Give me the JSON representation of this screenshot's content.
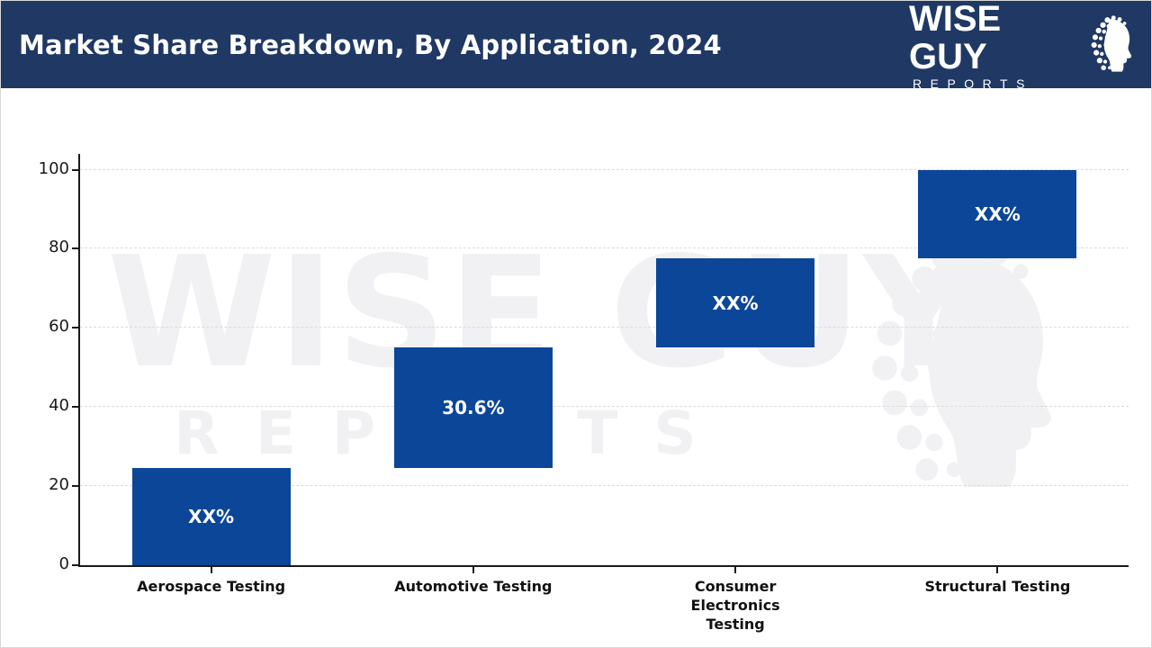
{
  "header": {
    "title": "Market Share Breakdown, By Application, 2024",
    "background_color": "#1f3864",
    "logo": {
      "wordmark": "WISE GUY",
      "subtext": "REPORTS"
    }
  },
  "watermark": {
    "wordmark": "WISE GUY",
    "subtext": "REPORTS"
  },
  "chart_data": {
    "type": "bar",
    "subtype": "floating-waterfall",
    "title": "Market Share Breakdown, By Application, 2024",
    "categories": [
      "Aerospace Testing",
      "Automotive Testing",
      "Consumer Electronics Testing",
      "Structural Testing"
    ],
    "category_lines": [
      [
        "Aerospace Testing"
      ],
      [
        "Automotive Testing"
      ],
      [
        "Consumer",
        "Electronics",
        "Testing"
      ],
      [
        "Structural Testing"
      ]
    ],
    "bars": [
      {
        "category": "Aerospace Testing",
        "from": 0,
        "to": 24.5,
        "label": "XX%"
      },
      {
        "category": "Automotive Testing",
        "from": 24.5,
        "to": 55.1,
        "label": "30.6%"
      },
      {
        "category": "Consumer Electronics Testing",
        "from": 55.1,
        "to": 77.5,
        "label": "XX%"
      },
      {
        "category": "Structural Testing",
        "from": 77.5,
        "to": 100,
        "label": "XX%"
      }
    ],
    "yticks": [
      0,
      20,
      40,
      60,
      80,
      100
    ],
    "ylim": [
      0,
      104
    ],
    "xlabel": "",
    "ylabel": "",
    "grid": "dashed-horizontal",
    "legend": "none",
    "bar_color": "#0b4699",
    "bar_label_color": "#ffffff",
    "axis_color": "#1a1a1a"
  }
}
